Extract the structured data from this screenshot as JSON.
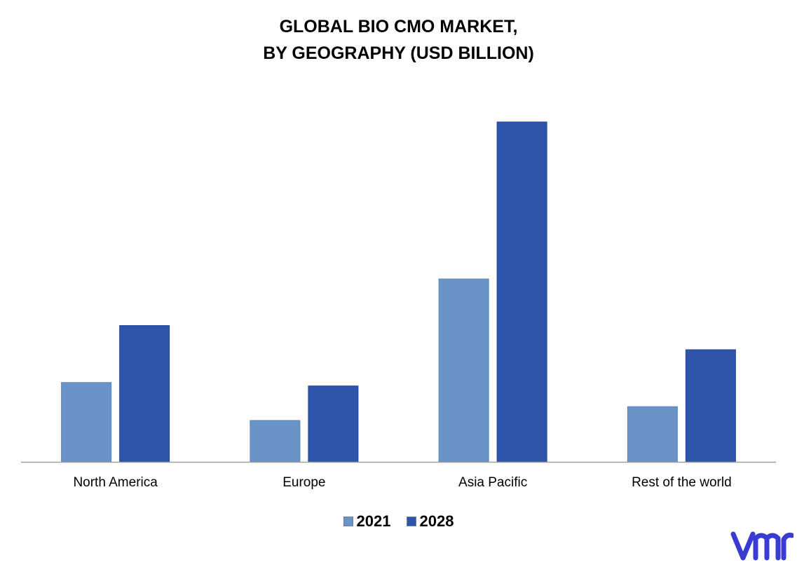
{
  "title_line1": "GLOBAL BIO CMO MARKET,",
  "title_line2": "BY GEOGRAPHY (USD BILLION)",
  "colors": {
    "series_2021": "#6a94c8",
    "series_2028": "#2e55aa",
    "axis": "#a0a0a0",
    "logo": "#3a3bd0"
  },
  "logo": {
    "icon": "vmr-logo-icon"
  },
  "chart_data": {
    "type": "bar",
    "title": "GLOBAL BIO CMO MARKET, BY GEOGRAPHY (USD BILLION)",
    "categories": [
      "North America",
      "Europe",
      "Asia Pacific",
      "Rest of the world"
    ],
    "series": [
      {
        "name": "2021",
        "values": [
          2.3,
          1.2,
          5.3,
          1.6
        ]
      },
      {
        "name": "2028",
        "values": [
          3.95,
          2.2,
          9.85,
          3.25
        ]
      }
    ],
    "ylim": [
      0,
      10.5
    ],
    "grid": false,
    "legend": "bottom-center",
    "xlabel": "",
    "ylabel": ""
  }
}
